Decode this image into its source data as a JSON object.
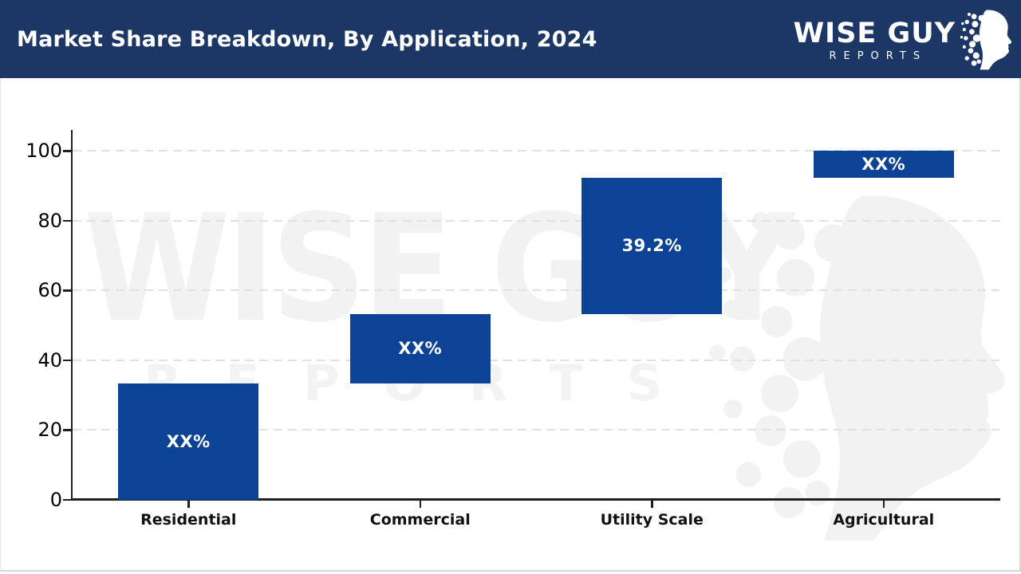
{
  "header": {
    "title": "Market Share Breakdown, By Application, 2024",
    "logo": {
      "line1": "WISE GUY",
      "line2": "REPORTS"
    }
  },
  "watermark": {
    "line1": "WISE GUY",
    "line2": "REPORTS"
  },
  "colors": {
    "header_bg": "#1c3766",
    "bar_blue": "#0d4396",
    "bar_label": "#ffffff",
    "axis": "#1f1f1f",
    "gridline": "#e1e1e1",
    "watermark": "#f2f2f2"
  },
  "chart_data": {
    "type": "bar",
    "subtype": "floating-waterfall",
    "title": "Market Share Breakdown, By Application, 2024",
    "xlabel": "",
    "ylabel": "",
    "categories": [
      "Residential",
      "Commercial",
      "Utility Scale",
      "Agricultural"
    ],
    "segments": [
      {
        "category": "Residential",
        "start": 0,
        "end": 33.4,
        "label": "XX%"
      },
      {
        "category": "Commercial",
        "start": 33.4,
        "end": 53.2,
        "label": "XX%"
      },
      {
        "category": "Utility Scale",
        "start": 53.2,
        "end": 92.4,
        "label": "39.2%"
      },
      {
        "category": "Agricultural",
        "start": 92.4,
        "end": 100,
        "label": "XX%"
      }
    ],
    "y_ticks": [
      0,
      20,
      40,
      60,
      80,
      100
    ],
    "ylim": [
      0,
      106
    ],
    "grid": "dashed-horizontal",
    "legend": "none"
  }
}
